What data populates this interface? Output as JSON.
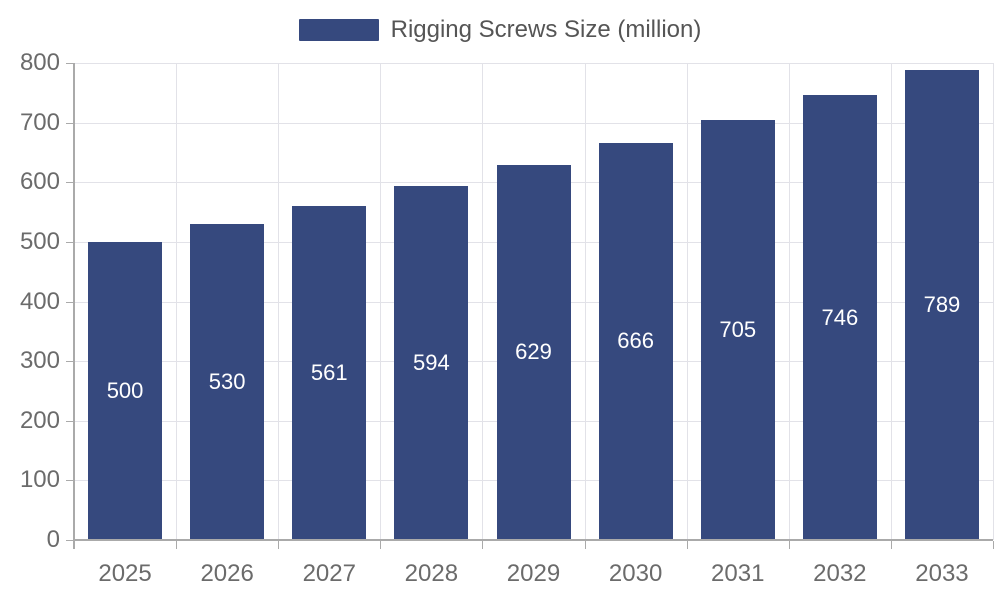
{
  "legend": {
    "label": "Rigging Screws Size (million)"
  },
  "colors": {
    "bar": "#36497e",
    "grid": "#e2e2e8",
    "axis": "#aaaaaa",
    "axis_text": "#6b6b6b",
    "legend_text": "#555555",
    "value_text": "#ffffff",
    "background": "#ffffff"
  },
  "chart_data": {
    "type": "bar",
    "title": "",
    "xlabel": "",
    "ylabel": "",
    "categories": [
      "2025",
      "2026",
      "2027",
      "2028",
      "2029",
      "2030",
      "2031",
      "2032",
      "2033"
    ],
    "series": [
      {
        "name": "Rigging Screws Size (million)",
        "values": [
          500,
          530,
          561,
          594,
          629,
          666,
          705,
          746,
          789
        ]
      }
    ],
    "value_labels": [
      "500",
      "530",
      "561",
      "594",
      "629",
      "666",
      "705",
      "746",
      "789"
    ],
    "ylim": [
      0,
      800
    ],
    "yticks": [
      0,
      100,
      200,
      300,
      400,
      500,
      600,
      700,
      800
    ],
    "ytick_labels": [
      "0",
      "100",
      "200",
      "300",
      "400",
      "500",
      "600",
      "700",
      "800"
    ],
    "grid": true,
    "legend_position": "top-center",
    "bar_color": "#36497e",
    "label_position": "inside-center"
  }
}
